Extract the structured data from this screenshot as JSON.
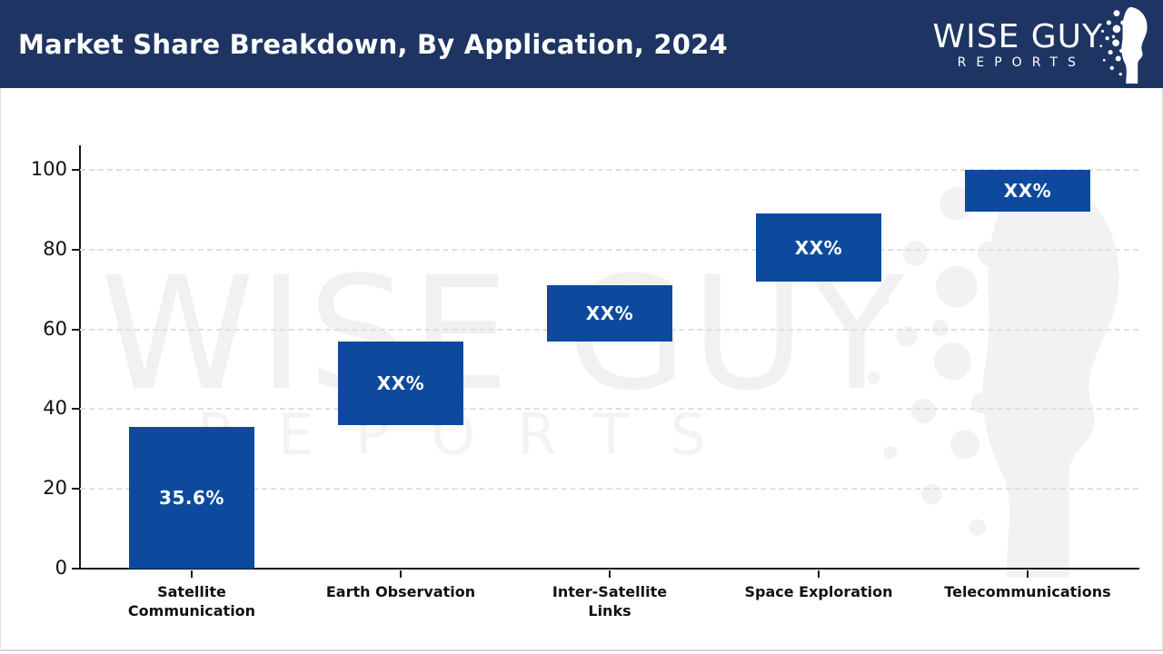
{
  "header": {
    "title": "Market Share Breakdown, By Application, 2024",
    "bg_color": "#1e3563",
    "logo": {
      "line1": "WISE GUY",
      "line2": "REPORTS"
    }
  },
  "watermark": {
    "line1": "WISE GUY",
    "line2": "REPORTS"
  },
  "chart_data": {
    "type": "bar",
    "subtype": "waterfall",
    "title": "Market Share Breakdown, By Application, 2024",
    "xlabel": "",
    "ylabel": "",
    "ylim": [
      0,
      106
    ],
    "y_ticks": [
      0,
      20,
      40,
      60,
      80,
      100
    ],
    "grid": "horizontal dashed",
    "legend": "none",
    "bar_color": "#0d4a9e",
    "label_color": "#ffffff",
    "categories": [
      "Satellite Communication",
      "Earth Observation",
      "Inter-Satellite Links",
      "Space Exploration",
      "Telecommunications"
    ],
    "segments": [
      {
        "category": "Satellite Communication",
        "lines": [
          "Satellite",
          "Communication"
        ],
        "start": 0,
        "end": 35.6,
        "label": "35.6%"
      },
      {
        "category": "Earth Observation",
        "lines": [
          "Earth Observation"
        ],
        "start": 36,
        "end": 57,
        "label": "XX%"
      },
      {
        "category": "Inter-Satellite Links",
        "lines": [
          "Inter-Satellite",
          "Links"
        ],
        "start": 57,
        "end": 71,
        "label": "XX%"
      },
      {
        "category": "Space Exploration",
        "lines": [
          "Space Exploration"
        ],
        "start": 72,
        "end": 89,
        "label": "XX%"
      },
      {
        "category": "Telecommunications",
        "lines": [
          "Telecommunications"
        ],
        "start": 89.5,
        "end": 100,
        "label": "XX%"
      }
    ]
  }
}
